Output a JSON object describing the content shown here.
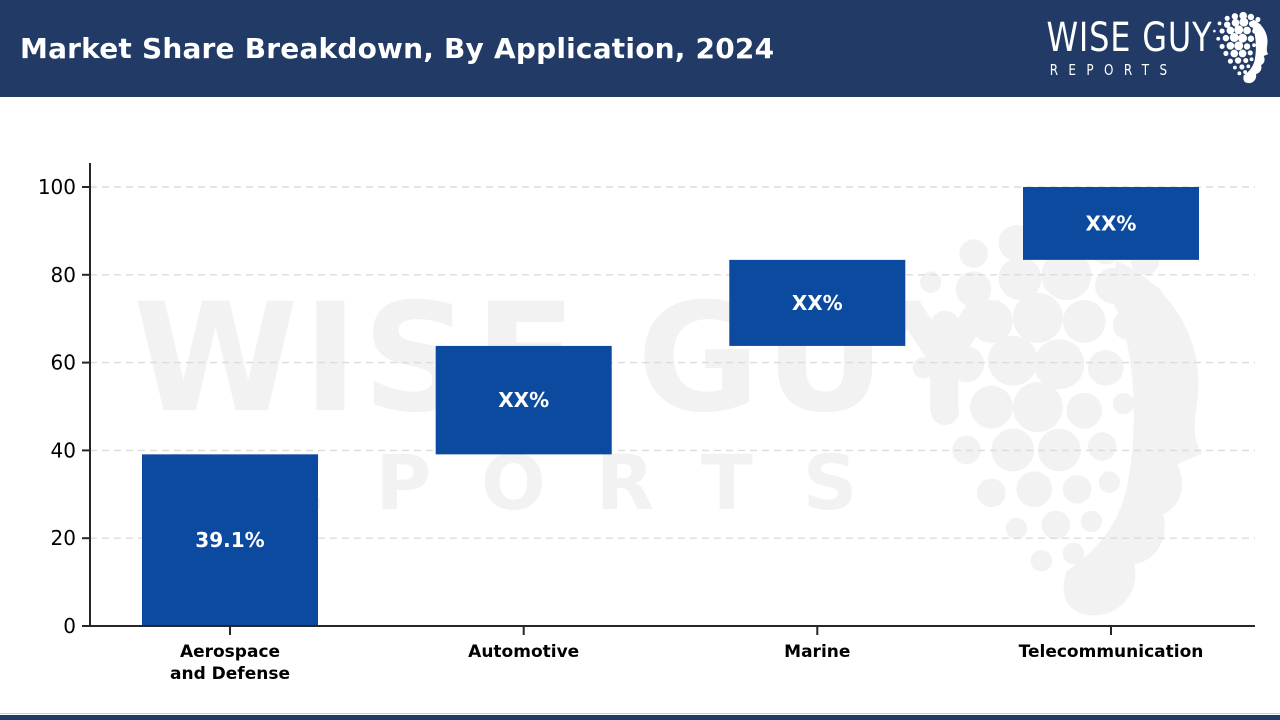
{
  "header": {
    "title": "Market Share Breakdown, By Application, 2024",
    "bg_color": "#213a66",
    "logo": {
      "line1": "WISE GUY",
      "line2": "REPORTS",
      "icon": "dotted-face-profile-icon"
    }
  },
  "watermark": {
    "line1": "WISE GUY",
    "line2": "REPORTS",
    "icon": "dotted-face-profile-icon",
    "color": "#f2f2f2"
  },
  "chart_data": {
    "type": "bar",
    "subtype": "waterfall-breakdown",
    "title": "Market Share Breakdown, By Application, 2024",
    "categories": [
      "Aerospace and Defense",
      "Automotive",
      "Marine",
      "Telecommunication"
    ],
    "segments": [
      {
        "category": "Aerospace and Defense",
        "start": 0,
        "end": 39.1,
        "label": "39.1%"
      },
      {
        "category": "Automotive",
        "start": 39.1,
        "end": 63.8,
        "label": "XX%"
      },
      {
        "category": "Marine",
        "start": 63.8,
        "end": 83.4,
        "label": "XX%"
      },
      {
        "category": "Telecommunication",
        "start": 83.4,
        "end": 100,
        "label": "XX%"
      }
    ],
    "y_ticks": [
      0,
      20,
      40,
      60,
      80,
      100
    ],
    "ylim": [
      0,
      100
    ],
    "xlabel": "",
    "ylabel": "",
    "grid": "horizontal-dashed",
    "legend": null,
    "bar_color": "#0b4a9e",
    "bar_label_color": "#ffffff",
    "axis_color": "#262626",
    "grid_color": "#dcdcdc",
    "tick_label_color": "#000000"
  }
}
